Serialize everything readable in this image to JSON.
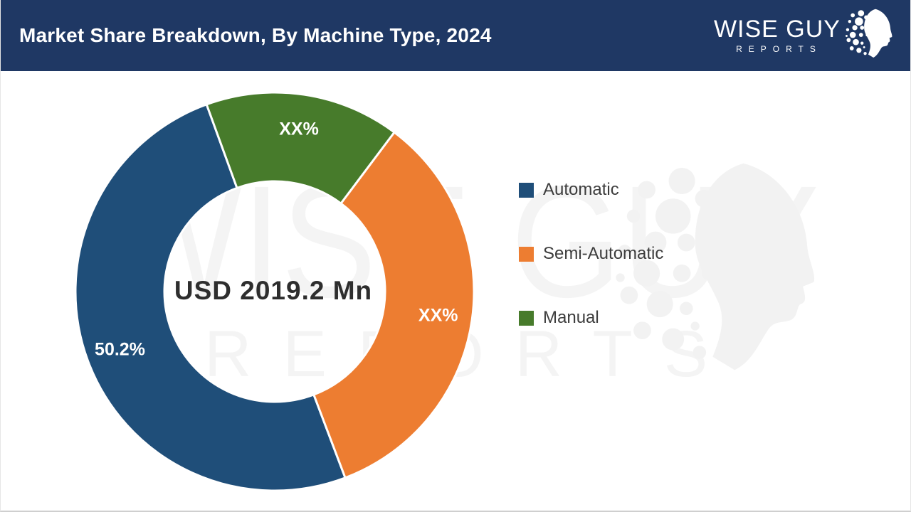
{
  "header": {
    "title": "Market Share Breakdown, By Machine Type, 2024",
    "bg_color": "#1F3864",
    "logo": {
      "line1": "WISE GUY",
      "line2": "REPORTS"
    }
  },
  "chart_data": {
    "type": "pie",
    "subtype": "donut",
    "title": "Market Share Breakdown, By Machine Type, 2024",
    "center_label": "USD 2019.2 Mn",
    "donut_hole_ratio": 0.55,
    "legend_position": "right",
    "start_angle_deg": -20,
    "segments": [
      {
        "name": "Automatic",
        "label": "50.2%",
        "value_pct": 50.2,
        "estimated": false,
        "color": "#1F4E79"
      },
      {
        "name": "Semi-Automatic",
        "label": "XX%",
        "value_pct": 34.0,
        "estimated": true,
        "color": "#ED7D31"
      },
      {
        "name": "Manual",
        "label": "XX%",
        "value_pct": 15.8,
        "estimated": true,
        "color": "#477B2B"
      }
    ]
  },
  "legend": {
    "items": [
      {
        "label": "Automatic",
        "color": "#1F4E79"
      },
      {
        "label": "Semi-Automatic",
        "color": "#ED7D31"
      },
      {
        "label": "Manual",
        "color": "#477B2B"
      }
    ]
  },
  "watermark": {
    "line1": "WISE GUY",
    "line2": "REPORTS"
  }
}
